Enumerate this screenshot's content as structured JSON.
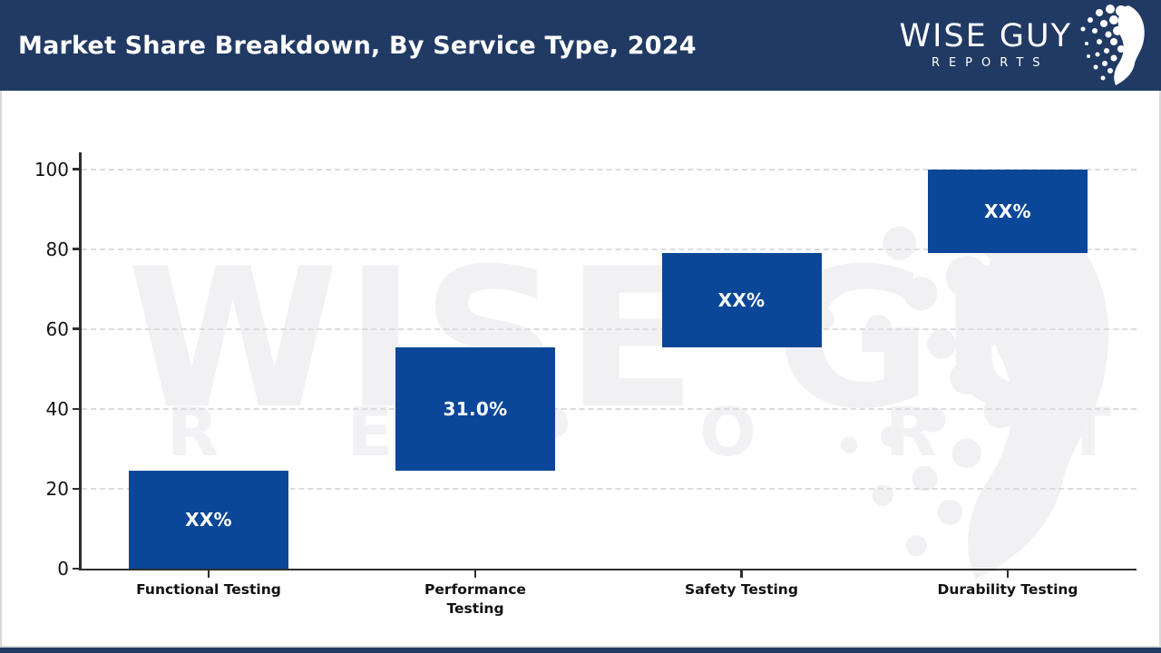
{
  "header": {
    "title": "Market Share Breakdown, By Service Type, 2024",
    "logo": {
      "line1": "WISE GUY",
      "line2": "REPORTS"
    }
  },
  "watermark": {
    "line1": "WISE GU",
    "line2": "R E P O R T"
  },
  "chart_data": {
    "type": "bar",
    "variant": "waterfall-floating-segments",
    "title": "Market Share Breakdown, By Service Type, 2024",
    "categories": [
      "Functional Testing",
      "Performance Testing",
      "Safety Testing",
      "Durability Testing"
    ],
    "categories_lines": [
      [
        "Functional Testing"
      ],
      [
        "Performance",
        "Testing"
      ],
      [
        "Safety Testing"
      ],
      [
        "Durability Testing"
      ]
    ],
    "segments": [
      {
        "category": "Functional Testing",
        "start": 0,
        "end": 24.5,
        "value_label": "XX%"
      },
      {
        "category": "Performance Testing",
        "start": 24.5,
        "end": 55.5,
        "value_label": "31.0%"
      },
      {
        "category": "Safety Testing",
        "start": 55.5,
        "end": 79.0,
        "value_label": "XX%"
      },
      {
        "category": "Durability Testing",
        "start": 79.0,
        "end": 100.0,
        "value_label": "XX%"
      }
    ],
    "yticks": [
      0,
      20,
      40,
      60,
      80,
      100
    ],
    "ylim": [
      0,
      105
    ],
    "xlabel": "",
    "ylabel": "",
    "grid": "horizontal-dashed",
    "legend": "none"
  },
  "colors": {
    "header_bg": "#213a64",
    "footer_bg": "#213a64",
    "bar_fill": "#0a4798",
    "bar_label": "#ffffff",
    "axis": "#2e2e2e",
    "grid": "#dcdcdc",
    "watermark": "#f1f1f3"
  }
}
